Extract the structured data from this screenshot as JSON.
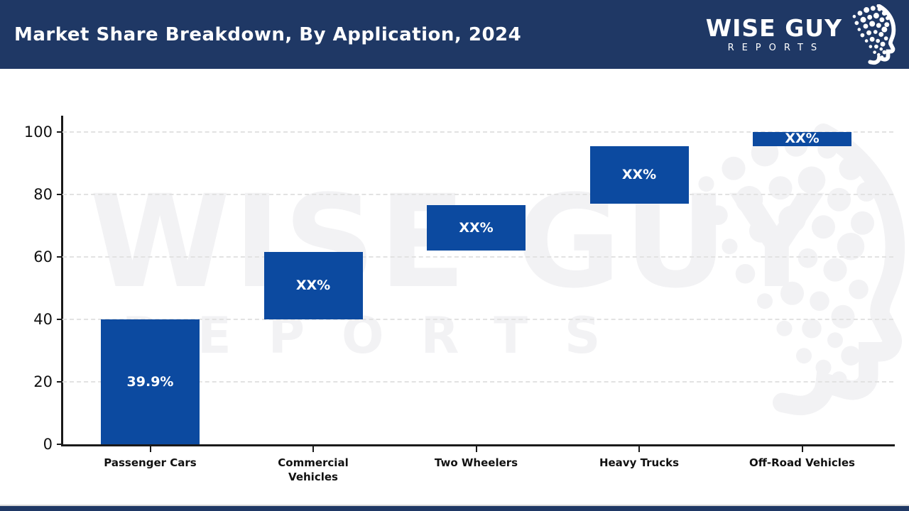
{
  "header": {
    "title": "Market Share Breakdown, By Application, 2024",
    "logo": {
      "primary": "WISE GUY",
      "secondary": "REPORTS"
    }
  },
  "watermark": {
    "line1": "WISE GUY",
    "line2": "REPORTS"
  },
  "chart_data": {
    "type": "bar",
    "subtype": "waterfall",
    "title": "Market Share Breakdown, By Application, 2024",
    "xlabel": "",
    "ylabel": "",
    "ylim": [
      0,
      105
    ],
    "y_ticks": [
      0,
      20,
      40,
      60,
      80,
      100
    ],
    "grid": "dashed-horizontal",
    "legend": "none",
    "categories": [
      "Passenger Cars",
      "Commercial Vehicles",
      "Two Wheelers",
      "Heavy Trucks",
      "Off-Road Vehicles"
    ],
    "segments": [
      {
        "category": "Passenger Cars",
        "label_lines": [
          "Passenger Cars"
        ],
        "start": 0,
        "end": 39.9,
        "label": "39.9%"
      },
      {
        "category": "Commercial Vehicles",
        "label_lines": [
          "Commercial",
          "Vehicles"
        ],
        "start": 40,
        "end": 61.5,
        "label": "XX%"
      },
      {
        "category": "Two Wheelers",
        "label_lines": [
          "Two Wheelers"
        ],
        "start": 62,
        "end": 76.5,
        "label": "XX%"
      },
      {
        "category": "Heavy Trucks",
        "label_lines": [
          "Heavy Trucks"
        ],
        "start": 77,
        "end": 95.5,
        "label": "XX%"
      },
      {
        "category": "Off-Road Vehicles",
        "label_lines": [
          "Off-Road Vehicles"
        ],
        "start": 95.5,
        "end": 100,
        "label": "XX%"
      }
    ]
  },
  "colors": {
    "header_bg": "#1f3865",
    "footer_bg": "#1f3865",
    "bar": "#0c4aa0",
    "bar_label": "#ffffff",
    "axis": "#1a1a1a",
    "grid": "#e2e2e2",
    "watermark": "#f2f2f4"
  }
}
